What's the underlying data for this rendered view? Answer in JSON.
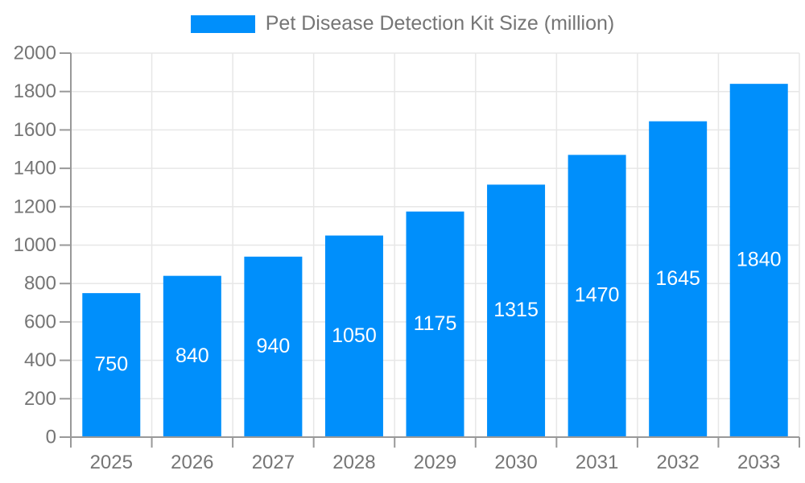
{
  "chart_data": {
    "type": "bar",
    "title": "Pet Disease Detection Kit Size (million)",
    "categories": [
      "2025",
      "2026",
      "2027",
      "2028",
      "2029",
      "2030",
      "2031",
      "2032",
      "2033"
    ],
    "values": [
      750,
      840,
      940,
      1050,
      1175,
      1315,
      1470,
      1645,
      1840
    ],
    "yticks": [
      0,
      200,
      400,
      600,
      800,
      1000,
      1200,
      1400,
      1600,
      1800,
      2000
    ],
    "ylim": [
      0,
      2000
    ],
    "xlabel": "",
    "ylabel": "",
    "grid": true,
    "legend_position": "top",
    "bar_color": "#008FFB",
    "data_label_color": "#ffffff",
    "axis_text_color": "#757575",
    "axis_line_color": "#999999",
    "grid_color": "#e7e7e7",
    "background": "#ffffff"
  },
  "legend": {
    "label": "Pet Disease Detection Kit Size (million)",
    "swatch_color": "#008FFB"
  }
}
